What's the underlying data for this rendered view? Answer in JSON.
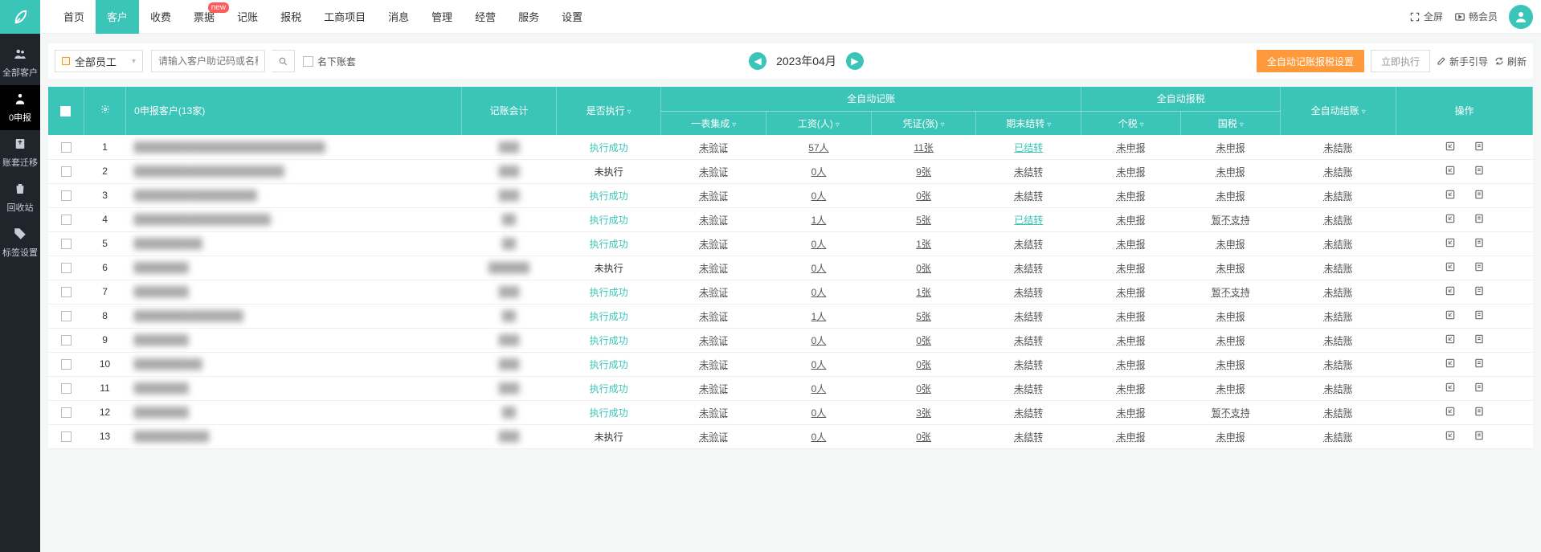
{
  "colors": {
    "accent": "#3bc4b8",
    "orange": "#ff9a3c",
    "badge": "#ff5a5a",
    "sidebar": "#20242b"
  },
  "topnav": {
    "items": [
      {
        "label": "首页"
      },
      {
        "label": "客户",
        "active": true
      },
      {
        "label": "收费"
      },
      {
        "label": "票据",
        "badge": "new"
      },
      {
        "label": "记账"
      },
      {
        "label": "报税"
      },
      {
        "label": "工商项目"
      },
      {
        "label": "消息"
      },
      {
        "label": "管理"
      },
      {
        "label": "经营"
      },
      {
        "label": "服务"
      },
      {
        "label": "设置"
      }
    ],
    "fullscreen": "全屏",
    "member": "畅会员"
  },
  "sidebar": {
    "items": [
      {
        "label": "全部客户",
        "icon": "users"
      },
      {
        "label": "0申报",
        "icon": "zero",
        "active": true
      },
      {
        "label": "账套迁移",
        "icon": "transfer"
      },
      {
        "label": "回收站",
        "icon": "trash"
      },
      {
        "label": "标签设置",
        "icon": "tag"
      }
    ]
  },
  "toolbar": {
    "employee_select": "全部员工",
    "search_placeholder": "请输入客户助记码或名称",
    "named_account_chk": "名下账套",
    "period": "2023年04月",
    "btn_auto": "全自动记账报税设置",
    "btn_run": "立即执行",
    "guide": "新手引导",
    "refresh": "刷新"
  },
  "table": {
    "headers": {
      "checkbox": "",
      "index": "",
      "customer": "0申报客户(13家)",
      "accountant": "记账会计",
      "exec": "是否执行",
      "group_book": "全自动记账",
      "form": "一表集成",
      "salary": "工资(人)",
      "voucher": "凭证(张)",
      "carry": "期末结转",
      "group_tax": "全自动报税",
      "ptax": "个税",
      "ntax": "国税",
      "close": "全自动结账",
      "ops": "操作"
    },
    "rows": [
      {
        "i": 1,
        "name": "████████████████████████████",
        "acct": "███",
        "exec": "执行成功",
        "form": "未验证",
        "salary": "57人",
        "voucher": "11张",
        "carry": "已结转",
        "carry_state": "done",
        "ptax": "未申报",
        "ntax": "未申报",
        "close": "未结账"
      },
      {
        "i": 2,
        "name": "██████████████████████",
        "acct": "███",
        "exec": "未执行",
        "form": "未验证",
        "salary": "0人",
        "voucher": "9张",
        "carry": "未结转",
        "ptax": "未申报",
        "ntax": "未申报",
        "close": "未结账"
      },
      {
        "i": 3,
        "name": "██████████████████",
        "acct": "███",
        "exec": "执行成功",
        "form": "未验证",
        "salary": "0人",
        "voucher": "0张",
        "carry": "未结转",
        "ptax": "未申报",
        "ntax": "未申报",
        "close": "未结账"
      },
      {
        "i": 4,
        "name": "████████████████████",
        "acct": "██",
        "exec": "执行成功",
        "form": "未验证",
        "salary": "1人",
        "voucher": "5张",
        "carry": "已结转",
        "carry_state": "done",
        "ptax": "未申报",
        "ntax": "暂不支持",
        "close": "未结账"
      },
      {
        "i": 5,
        "name": "██████████",
        "acct": "██",
        "exec": "执行成功",
        "form": "未验证",
        "salary": "0人",
        "voucher": "1张",
        "carry": "未结转",
        "ptax": "未申报",
        "ntax": "未申报",
        "close": "未结账"
      },
      {
        "i": 6,
        "name": "████████",
        "acct": "██████",
        "exec": "未执行",
        "form": "未验证",
        "salary": "0人",
        "voucher": "0张",
        "carry": "未结转",
        "ptax": "未申报",
        "ntax": "未申报",
        "close": "未结账"
      },
      {
        "i": 7,
        "name": "████████",
        "acct": "███",
        "exec": "执行成功",
        "form": "未验证",
        "salary": "0人",
        "voucher": "1张",
        "carry": "未结转",
        "ptax": "未申报",
        "ntax": "暂不支持",
        "close": "未结账"
      },
      {
        "i": 8,
        "name": "████████████████",
        "acct": "██",
        "exec": "执行成功",
        "form": "未验证",
        "salary": "1人",
        "voucher": "5张",
        "carry": "未结转",
        "ptax": "未申报",
        "ntax": "未申报",
        "close": "未结账"
      },
      {
        "i": 9,
        "name": "████████",
        "acct": "███",
        "exec": "执行成功",
        "form": "未验证",
        "salary": "0人",
        "voucher": "0张",
        "carry": "未结转",
        "ptax": "未申报",
        "ntax": "未申报",
        "close": "未结账"
      },
      {
        "i": 10,
        "name": "██████████",
        "acct": "███",
        "exec": "执行成功",
        "form": "未验证",
        "salary": "0人",
        "voucher": "0张",
        "carry": "未结转",
        "ptax": "未申报",
        "ntax": "未申报",
        "close": "未结账"
      },
      {
        "i": 11,
        "name": "████████",
        "acct": "███",
        "exec": "执行成功",
        "form": "未验证",
        "salary": "0人",
        "voucher": "0张",
        "carry": "未结转",
        "ptax": "未申报",
        "ntax": "未申报",
        "close": "未结账"
      },
      {
        "i": 12,
        "name": "████████",
        "acct": "██",
        "exec": "执行成功",
        "form": "未验证",
        "salary": "0人",
        "voucher": "3张",
        "carry": "未结转",
        "ptax": "未申报",
        "ntax": "暂不支持",
        "close": "未结账"
      },
      {
        "i": 13,
        "name": "███████████",
        "acct": "███",
        "exec": "未执行",
        "form": "未验证",
        "salary": "0人",
        "voucher": "0张",
        "carry": "未结转",
        "ptax": "未申报",
        "ntax": "未申报",
        "close": "未结账"
      }
    ]
  }
}
